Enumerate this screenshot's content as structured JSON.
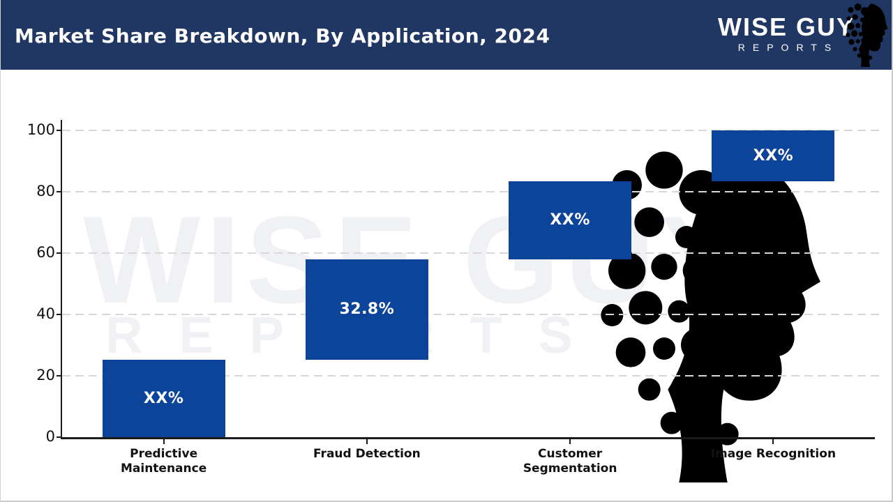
{
  "header": {
    "title": "Market Share Breakdown, By Application, 2024",
    "background_color": "#203764",
    "logo": {
      "wordmark": "WISE GUY",
      "subtitle": "REPORTS"
    }
  },
  "watermark": {
    "wordmark": "WISE GUY",
    "subtitle": "REPORTS",
    "color": "#f0f1f4"
  },
  "chart_data": {
    "type": "bar",
    "subtype": "floating-segment-breakdown",
    "title": "Market Share Breakdown, By Application, 2024",
    "categories": [
      "Predictive Maintenance",
      "Fraud Detection",
      "Customer Segmentation",
      "Image Recognition"
    ],
    "category_lines": [
      [
        "Predictive",
        "Maintenance"
      ],
      [
        "Fraud Detection"
      ],
      [
        "Customer",
        "Segmentation"
      ],
      [
        "Image Recognition"
      ]
    ],
    "series": [
      {
        "name": "Market Share (%)",
        "segments": [
          {
            "category": "Predictive Maintenance",
            "start": 0,
            "end": 25.2,
            "label": "XX%"
          },
          {
            "category": "Fraud Detection",
            "start": 25.2,
            "end": 58.0,
            "label": "32.8%"
          },
          {
            "category": "Customer Segmentation",
            "start": 58.0,
            "end": 83.5,
            "label": "XX%"
          },
          {
            "category": "Image Recognition",
            "start": 83.5,
            "end": 100,
            "label": "XX%"
          }
        ]
      }
    ],
    "xlabel": "",
    "ylabel": "",
    "yticks": [
      0,
      20,
      40,
      60,
      80,
      100
    ],
    "ylim": [
      0,
      103.5
    ],
    "grid": "horizontal-dashed",
    "legend": "none",
    "bar_color": "#0b4499",
    "bar_label_color": "#ffffff",
    "axis_color": "#1a1a1a"
  }
}
